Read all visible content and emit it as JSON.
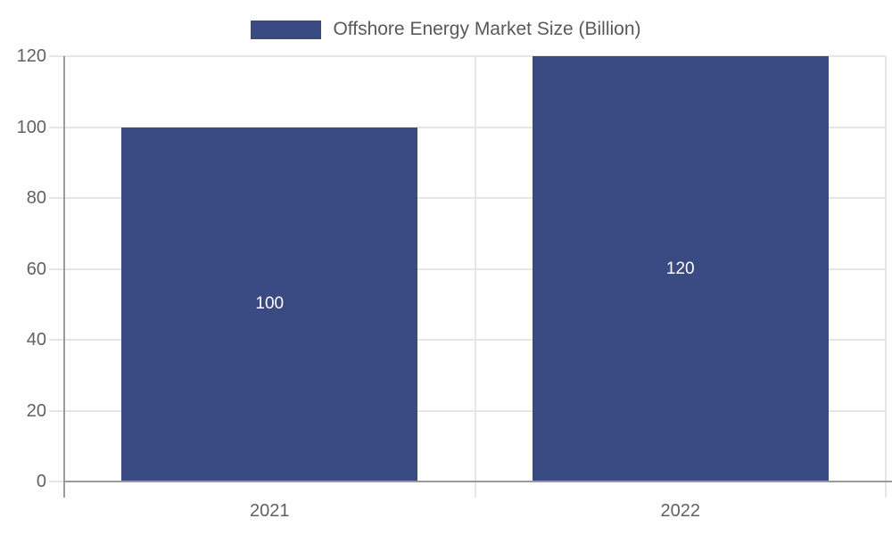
{
  "legend": {
    "label": "Offshore Energy Market Size (Billion)"
  },
  "chart_data": {
    "type": "bar",
    "categories": [
      "2021",
      "2022"
    ],
    "series": [
      {
        "name": "Offshore Energy Market Size (Billion)",
        "values": [
          100,
          120
        ]
      }
    ],
    "bar_value_labels": [
      "100",
      "120"
    ],
    "xlabel": "",
    "ylabel": "",
    "ylim": [
      0,
      120
    ],
    "yticks": [
      0,
      20,
      40,
      60,
      80,
      100,
      120
    ],
    "ytick_labels": [
      "0",
      "20",
      "40",
      "60",
      "80",
      "100",
      "120"
    ],
    "grid": true,
    "legend_position": "top",
    "colors": {
      "bar": "#3A4A83",
      "grid_line": "#E6E6E6",
      "axis_line": "#9A9A9A",
      "tick_text": "#616161",
      "legend_text": "#595959",
      "bar_label_text": "#FFFFFF",
      "background": "#FFFFFF"
    }
  }
}
